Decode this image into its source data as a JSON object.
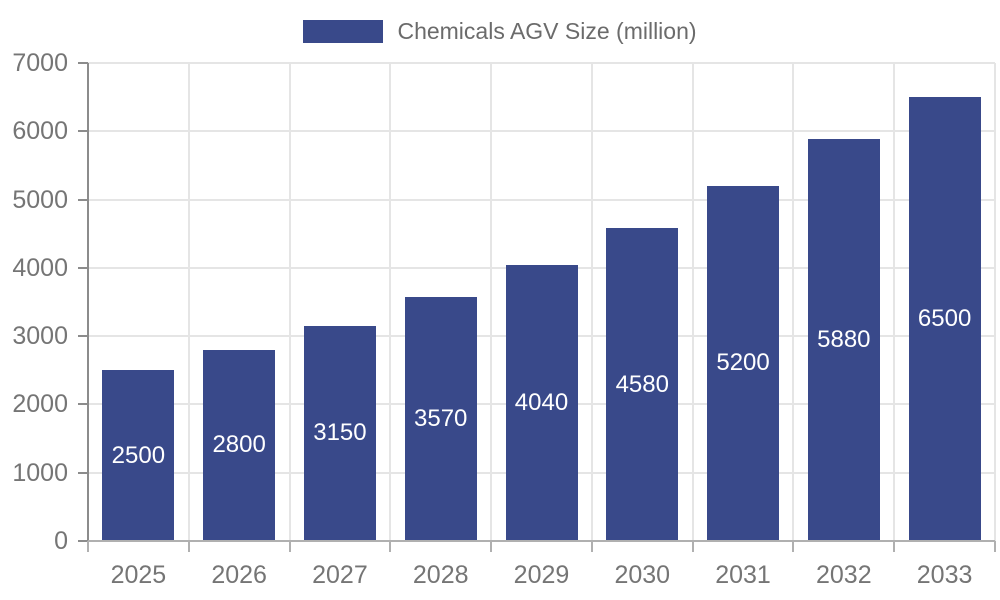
{
  "legend": {
    "label": "Chemicals AGV Size (million)"
  },
  "colors": {
    "bar": "#39498A",
    "grid": "#e5e5e5",
    "axis": "#8c8c8c",
    "tick_label": "#757575",
    "legend_text": "#6b6b6b",
    "bar_label": "#ffffff",
    "background": "#ffffff"
  },
  "chart_data": {
    "type": "bar",
    "title": "",
    "legend_entries": [
      "Chemicals AGV Size (million)"
    ],
    "legend_position": "top-center",
    "categories": [
      "2025",
      "2026",
      "2027",
      "2028",
      "2029",
      "2030",
      "2031",
      "2032",
      "2033"
    ],
    "values": [
      2500,
      2800,
      3150,
      3570,
      4040,
      4580,
      5200,
      5880,
      6500
    ],
    "xlabel": "",
    "ylabel": "",
    "ylim": [
      0,
      7000
    ],
    "yticks": [
      0,
      1000,
      2000,
      3000,
      4000,
      5000,
      6000,
      7000
    ],
    "grid": true,
    "bar_value_labels": true,
    "bar_value_label_position": "center-inside"
  }
}
